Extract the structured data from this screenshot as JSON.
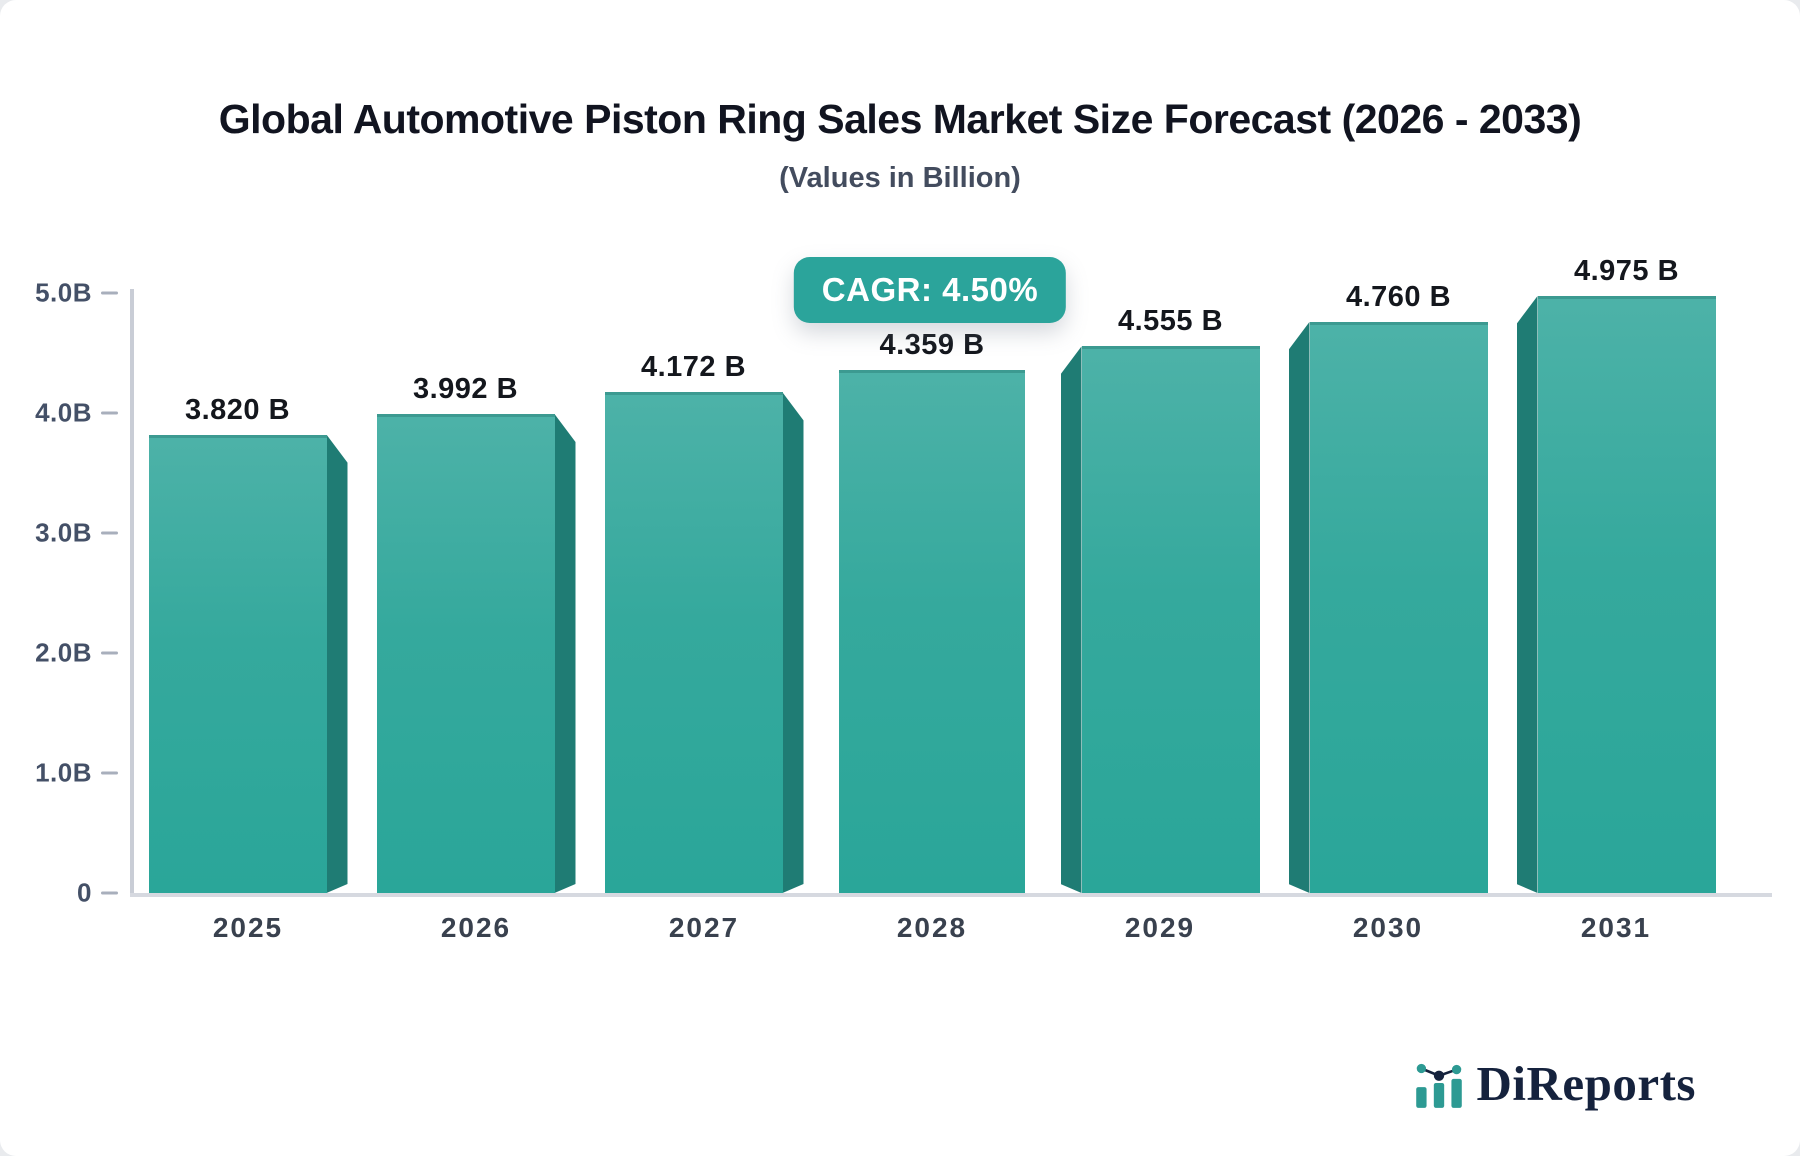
{
  "header": {
    "title": "Global Automotive Piston Ring Sales Market Size Forecast (2026 - 2033)",
    "subtitle": "(Values in Billion)"
  },
  "cagr_badge": {
    "label": "CAGR: 4.50%"
  },
  "chart_data": {
    "type": "bar",
    "title": "Global Automotive Piston Ring Sales Market Size Forecast (2026 - 2033)",
    "subtitle": "(Values in Billion)",
    "xlabel": "",
    "ylabel": "",
    "categories": [
      "2025",
      "2026",
      "2027",
      "2028",
      "2029",
      "2030",
      "2031"
    ],
    "values": [
      3.82,
      3.992,
      4.172,
      4.359,
      4.555,
      4.76,
      4.975
    ],
    "value_labels": [
      "3.820 B",
      "3.992 B",
      "4.172 B",
      "4.359 B",
      "4.555 B",
      "4.760 B",
      "4.975 B"
    ],
    "cagr_label": "CAGR: 4.50%",
    "ylim": [
      0,
      5.0
    ],
    "yticks": [
      {
        "value": 0,
        "label": "0"
      },
      {
        "value": 1.0,
        "label": "1.0B"
      },
      {
        "value": 2.0,
        "label": "2.0B"
      },
      {
        "value": 3.0,
        "label": "3.0B"
      },
      {
        "value": 4.0,
        "label": "4.0B"
      },
      {
        "value": 5.0,
        "label": "5.0B"
      }
    ],
    "grid": false,
    "legend": false,
    "colors": {
      "bar_face_top": "#4db2a8",
      "bar_face_bottom": "#2aa699",
      "bar_side": "#1f7c74",
      "badge_bg": "#2ba49b",
      "axis_line": "#c9cdd6",
      "baseline": "#d6d9e0"
    }
  },
  "logo": {
    "text": "DiReports",
    "icon": "bar-chart-trend-icon",
    "text_color": "#15223d",
    "accent_color": "#2d9a93"
  }
}
